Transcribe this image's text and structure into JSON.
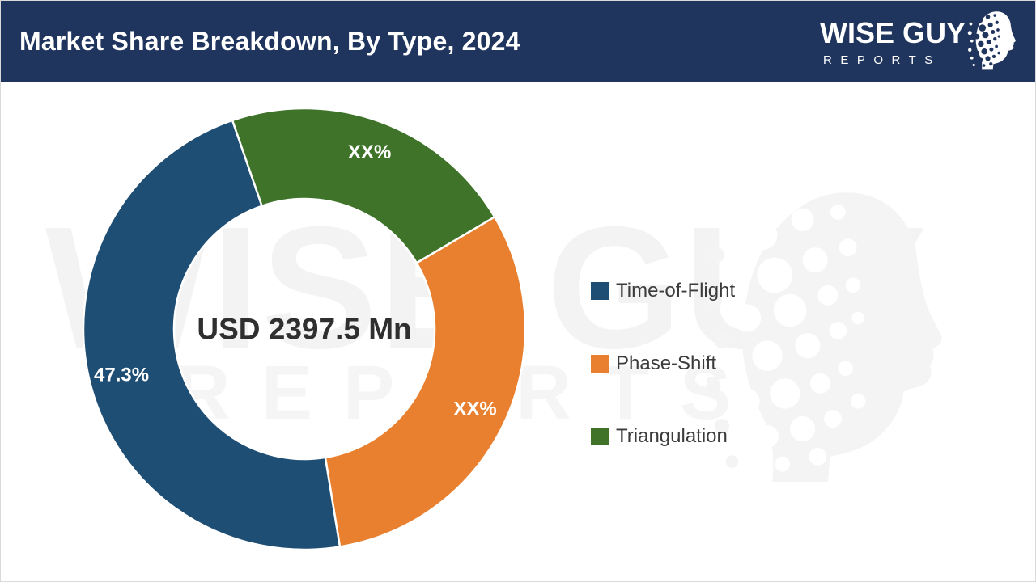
{
  "header": {
    "title": "Market Share Breakdown, By Type, 2024",
    "logo": {
      "line1": "WISE GUY",
      "line2": "REPORTS"
    }
  },
  "watermark": {
    "line1": "WISE GUY",
    "line2": "REPORTS"
  },
  "chart_data": {
    "type": "pie",
    "subtype": "donut",
    "title": "Market Share Breakdown, By Type, 2024",
    "center_label": "USD 2397.5 Mn",
    "start_angle_deg": 109,
    "direction": "counterclockwise",
    "legend_position": "right",
    "segments": [
      {
        "name": "Time-of-Flight",
        "value_pct": 47.3,
        "display_label": "47.3%",
        "color": "#1F4E74"
      },
      {
        "name": "Phase-Shift",
        "value_pct": 30.9,
        "display_label": "XX%",
        "color": "#E8802F"
      },
      {
        "name": "Triangulation",
        "value_pct": 21.8,
        "display_label": "XX%",
        "color": "#3F7329"
      }
    ]
  },
  "legend": {
    "items": [
      {
        "label": "Time-of-Flight",
        "color": "#1F4E74"
      },
      {
        "label": "Phase-Shift",
        "color": "#E8802F"
      },
      {
        "label": "Triangulation",
        "color": "#3F7329"
      }
    ]
  }
}
